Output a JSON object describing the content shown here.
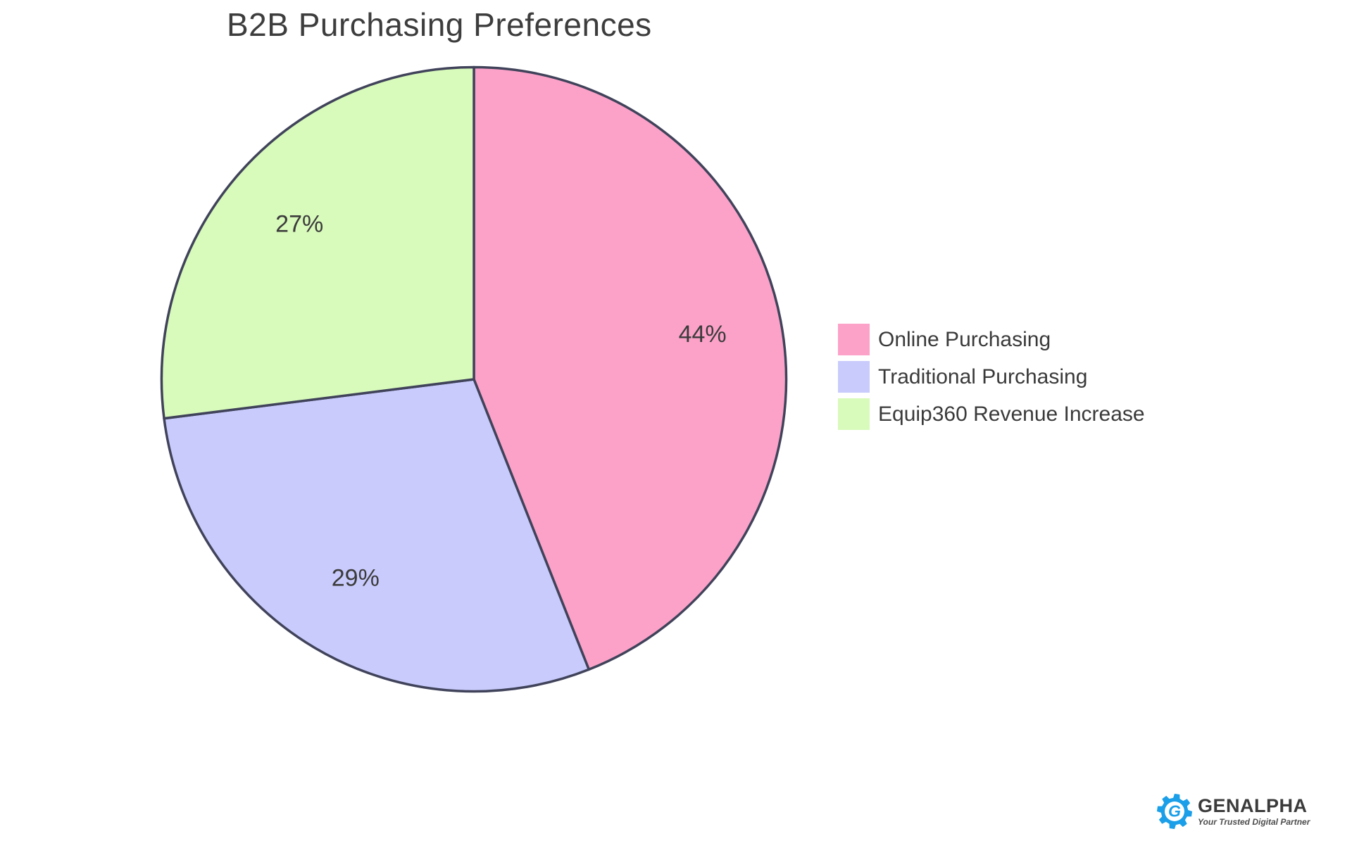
{
  "chart": {
    "title": "B2B Purchasing Preferences"
  },
  "chart_data": {
    "type": "pie",
    "title": "B2B Purchasing Preferences",
    "categories": [
      "Online Purchasing",
      "Traditional Purchasing",
      "Equip360 Revenue Increase"
    ],
    "values": [
      44,
      29,
      27
    ],
    "unit": "percent",
    "slice_labels": [
      "44%",
      "29%",
      "27%"
    ],
    "colors": [
      "#FCA2C9",
      "#C9CBFC",
      "#D8FABB"
    ],
    "slice_border_color": "#40435A",
    "label_color": "#3B3B3B",
    "start_angle": "12 o'clock",
    "direction": "clockwise",
    "legend_position": "right"
  },
  "legend": {
    "items": [
      {
        "label": "Online Purchasing",
        "color": "#FCA2C9"
      },
      {
        "label": "Traditional Purchasing",
        "color": "#C9CBFC"
      },
      {
        "label": "Equip360 Revenue Increase",
        "color": "#D8FABB"
      }
    ]
  },
  "branding": {
    "name": "GENALPHA",
    "tagline": "Your Trusted Digital Partner",
    "logo_color": "#1B9FE8"
  }
}
